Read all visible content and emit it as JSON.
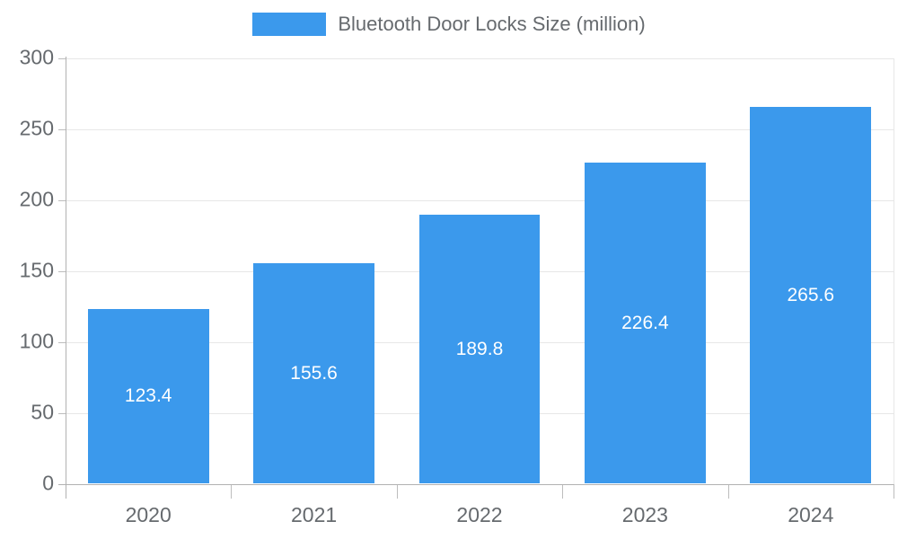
{
  "chart_data": {
    "type": "bar",
    "title": "Bluetooth Door Locks Size (million)",
    "categories": [
      "2020",
      "2021",
      "2022",
      "2023",
      "2024"
    ],
    "series": [
      {
        "name": "Bluetooth Door Locks Size (million)",
        "values": [
          123.4,
          155.6,
          189.8,
          226.4,
          265.6
        ]
      }
    ],
    "value_labels": [
      "123.4",
      "155.6",
      "189.8",
      "226.4",
      "265.6"
    ],
    "xlabel": "",
    "ylabel": "",
    "ylim": [
      0,
      300
    ],
    "ytick_step": 50,
    "ytick_labels": [
      "0",
      "50",
      "100",
      "150",
      "200",
      "250",
      "300"
    ],
    "grid": "horizontal",
    "legend_position": "top-center",
    "colors": {
      "bar": "#3b99ec",
      "bar_value_text": "#ffffff",
      "axis_line": "#b2b2b2",
      "tick_mark": "#bdbdbd",
      "gridline": "#e7e7e7",
      "tick_label_text": "#666a6e",
      "legend_text": "#666a6e",
      "background": "#ffffff"
    }
  },
  "legend": {
    "label": "Bluetooth Door Locks Size (million)"
  }
}
